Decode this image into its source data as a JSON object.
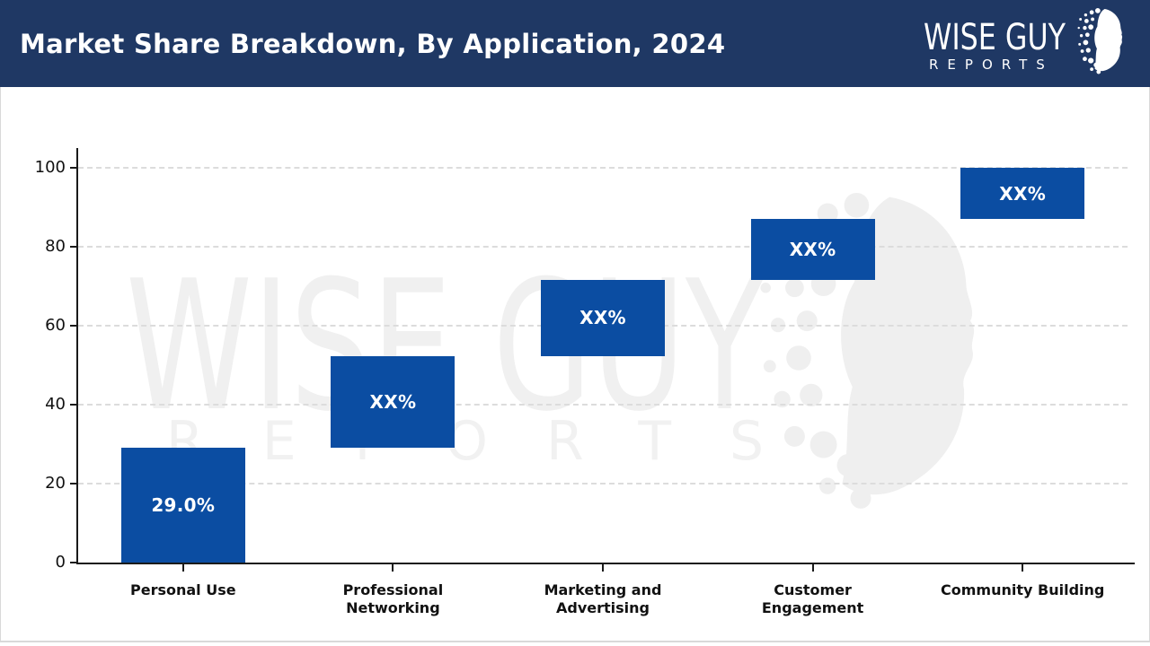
{
  "header": {
    "title": "Market Share Breakdown, By Application, 2024",
    "bg_color": "#1f3864",
    "logo": {
      "line1": "WISE GUY",
      "line2": "REPORTS",
      "color": "#ffffff"
    }
  },
  "watermark": {
    "line1": "WISE GUY",
    "line2": "REPORTS",
    "color": "#f0f0f0"
  },
  "chart_data": {
    "type": "bar",
    "subtype": "waterfall",
    "title": "Market Share Breakdown, By Application, 2024",
    "xlabel": "",
    "ylabel": "",
    "categories": [
      "Personal Use",
      "Professional Networking",
      "Marketing and Advertising",
      "Customer Engagement",
      "Community Building"
    ],
    "tick_label_lines": [
      [
        "Personal Use"
      ],
      [
        "Professional",
        "Networking"
      ],
      [
        "Marketing and",
        "Advertising"
      ],
      [
        "Customer",
        "Engagement"
      ],
      [
        "Community Building"
      ]
    ],
    "segments": [
      {
        "category": "Personal Use",
        "start": 0,
        "end": 29,
        "label": "29.0%"
      },
      {
        "category": "Professional Networking",
        "start": 29,
        "end": 52.3,
        "label": "XX%"
      },
      {
        "category": "Marketing and Advertising",
        "start": 52.3,
        "end": 71.6,
        "label": "XX%"
      },
      {
        "category": "Customer Engagement",
        "start": 71.6,
        "end": 87,
        "label": "XX%"
      },
      {
        "category": "Community Building",
        "start": 87,
        "end": 100,
        "label": "XX%"
      }
    ],
    "ylim": [
      0,
      100
    ],
    "yticks": [
      0,
      20,
      40,
      60,
      80,
      100
    ],
    "grid": "horizontal-dashed",
    "grid_color": "#dcdcdc",
    "legend": "none",
    "bar_color": "#0b4da2",
    "bar_label_color": "#ffffff",
    "axis_color": "#1a1a1a"
  }
}
